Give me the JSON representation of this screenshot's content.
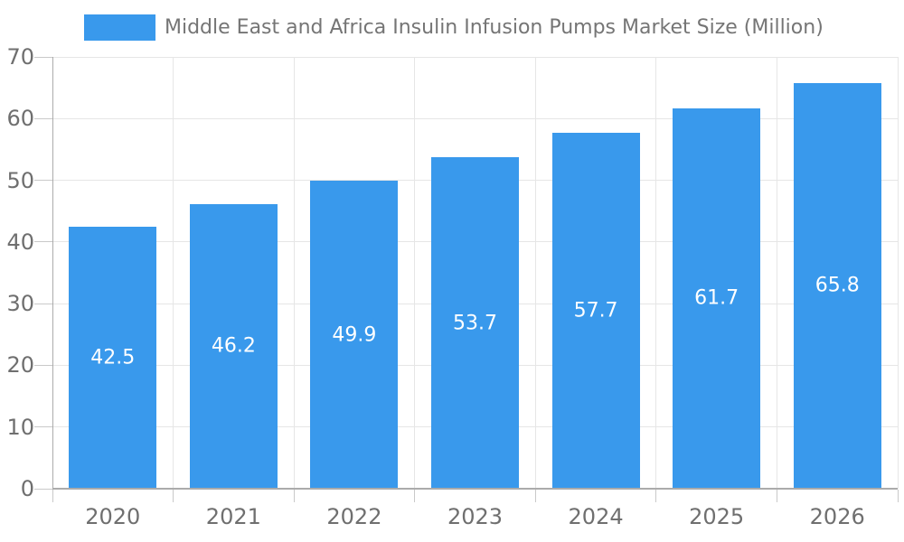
{
  "chart_data": {
    "type": "bar",
    "title": "Middle East and Africa Insulin Infusion Pumps Market Size (Million)",
    "legend": [
      "Middle East and Africa Insulin Infusion Pumps Market Size (Million)"
    ],
    "legend_position": "top",
    "categories": [
      "2020",
      "2021",
      "2022",
      "2023",
      "2024",
      "2025",
      "2026"
    ],
    "values": [
      42.5,
      46.2,
      49.9,
      53.7,
      57.7,
      61.7,
      65.8
    ],
    "value_labels": [
      "42.5",
      "46.2",
      "49.9",
      "53.7",
      "57.7",
      "61.7",
      "65.8"
    ],
    "xlabel": "",
    "ylabel": "",
    "ylim": [
      0,
      70
    ],
    "y_ticks": [
      0,
      10,
      20,
      30,
      40,
      50,
      60,
      70
    ],
    "grid": true,
    "colors": {
      "bar": "#3999EC",
      "value_label": "#FFFFFF",
      "grid_line": "#E6E6E6",
      "axis_line": "#ABABAB",
      "tick_mark": "#C9C9C9",
      "axis_text": "#6F6F6F",
      "title_text": "#757575"
    }
  }
}
